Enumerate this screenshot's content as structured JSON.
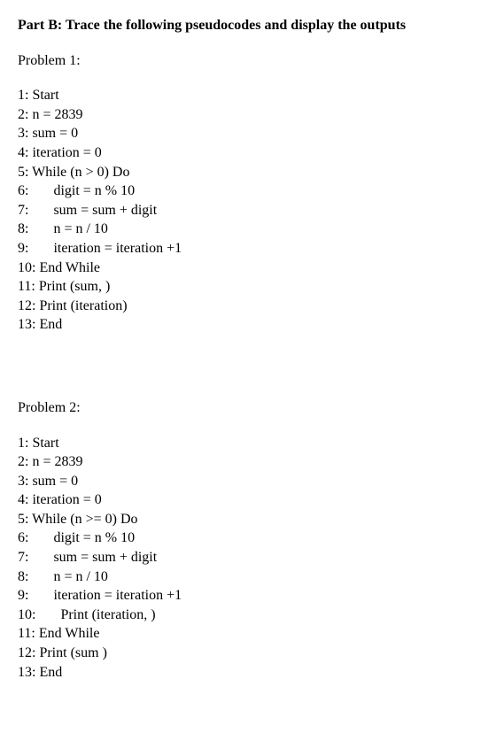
{
  "title": "Part B: Trace the following pseudocodes and display the outputs",
  "problem1": {
    "label": "Problem 1:",
    "lines": [
      {
        "n": "1:",
        "txt": "Start",
        "indent": false
      },
      {
        "n": "2:",
        "txt": "n = 2839",
        "indent": false
      },
      {
        "n": "3:",
        "txt": "sum = 0",
        "indent": false
      },
      {
        "n": "4:",
        "txt": "iteration = 0",
        "indent": false
      },
      {
        "n": "5:",
        "txt": "While (n > 0) Do",
        "indent": false
      },
      {
        "n": "6:",
        "txt": "digit = n % 10",
        "indent": true
      },
      {
        "n": "7:",
        "txt": "sum = sum + digit",
        "indent": true
      },
      {
        "n": "8:",
        "txt": "n = n / 10",
        "indent": true
      },
      {
        "n": "9:",
        "txt": "iteration = iteration +1",
        "indent": true
      },
      {
        "n": "10:",
        "txt": "End While",
        "indent": false
      },
      {
        "n": "11:",
        "txt": "Print (sum, )",
        "indent": false
      },
      {
        "n": "12:",
        "txt": "Print (iteration)",
        "indent": false
      },
      {
        "n": "13:",
        "txt": "End",
        "indent": false
      }
    ]
  },
  "problem2": {
    "label": "Problem 2:",
    "lines": [
      {
        "n": "1:",
        "txt": "Start",
        "indent": false
      },
      {
        "n": "2:",
        "txt": "n = 2839",
        "indent": false
      },
      {
        "n": "3:",
        "txt": "sum = 0",
        "indent": false
      },
      {
        "n": "4:",
        "txt": "iteration = 0",
        "indent": false
      },
      {
        "n": "5:",
        "txt": "While (n >= 0) Do",
        "indent": false
      },
      {
        "n": "6:",
        "txt": "digit = n % 10",
        "indent": true
      },
      {
        "n": "7:",
        "txt": "sum = sum + digit",
        "indent": true
      },
      {
        "n": "8:",
        "txt": "n = n / 10",
        "indent": true
      },
      {
        "n": "9:",
        "txt": "iteration = iteration +1",
        "indent": true
      },
      {
        "n": "10:",
        "txt": "Print (iteration, )",
        "indent": true
      },
      {
        "n": "11:",
        "txt": "End While",
        "indent": false
      },
      {
        "n": "12:",
        "txt": "Print (sum )",
        "indent": false
      },
      {
        "n": "13:",
        "txt": "End",
        "indent": false
      }
    ]
  }
}
